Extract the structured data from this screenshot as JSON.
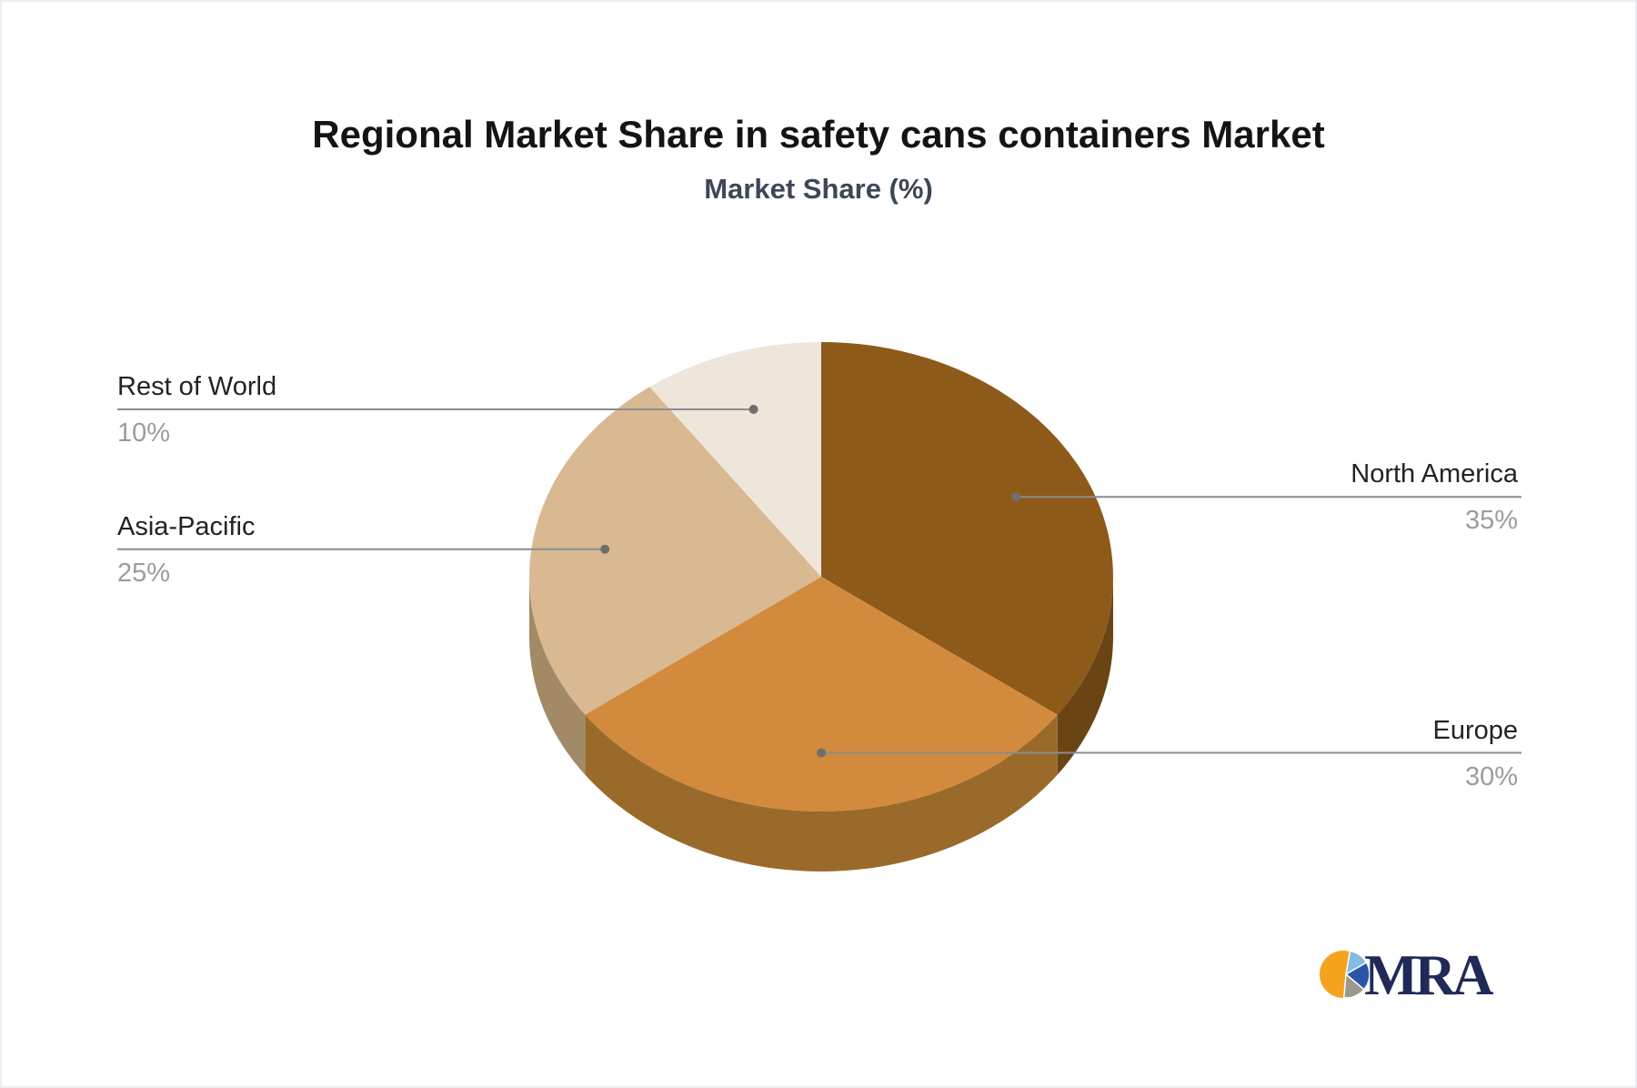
{
  "chart_data": {
    "type": "pie",
    "title": "Regional Market Share in safety cans containers Market",
    "subtitle": "Market Share (%)",
    "unit": "%",
    "start_angle_deg": 90,
    "direction": "clockwise",
    "style_3d": true,
    "legend_position": "none",
    "slices": [
      {
        "label": "North America",
        "value": 35,
        "display": "35%",
        "color": "#8E5A1A",
        "side_color": "#6B4414"
      },
      {
        "label": "Europe",
        "value": 30,
        "display": "30%",
        "color": "#D28A3D",
        "side_color": "#9A6A2B"
      },
      {
        "label": "Asia-Pacific",
        "value": 25,
        "display": "25%",
        "color": "#D9B992",
        "side_color": "#A28A67"
      },
      {
        "label": "Rest of World",
        "value": 10,
        "display": "10%",
        "color": "#EEE5DB",
        "side_color": "#CBBFB1"
      }
    ],
    "label_text_color": "#232323",
    "value_text_color": "#9C9C9C",
    "leader_line_color": "#8C8C8C",
    "leader_dot_color": "#6E6E6E",
    "title_color": "#141414",
    "subtitle_color": "#3C4858",
    "background_color": "#FFFFFF"
  },
  "logo": {
    "text": "MRA",
    "colors": {
      "orange": "#F5A21D",
      "light_blue": "#86BADE",
      "dark_blue": "#2A56A5",
      "gray": "#9A988F",
      "text_navy": "#1F2A56"
    }
  }
}
